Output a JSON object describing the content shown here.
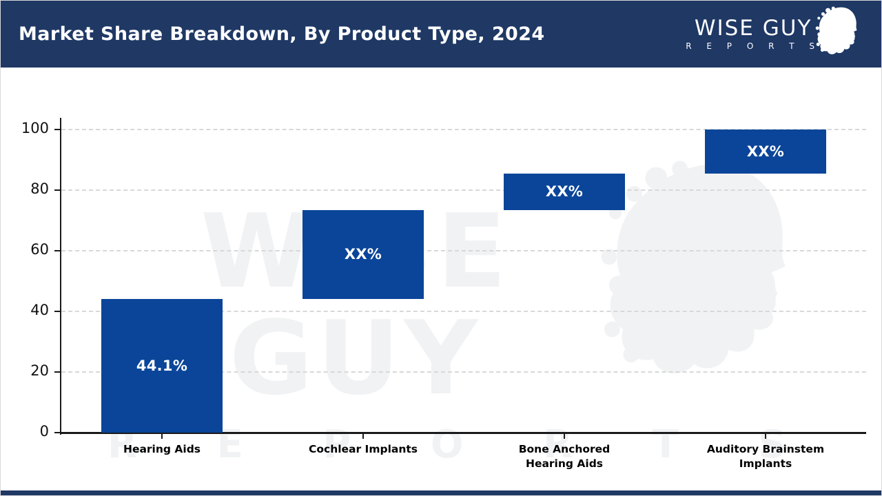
{
  "header": {
    "title": "Market Share Breakdown, By Product Type, 2024",
    "logo": {
      "line1": "WISE GUY",
      "line2": "R E P O R T S"
    }
  },
  "watermark": {
    "line1": "WISE GUY",
    "line2": "R E P O R T S"
  },
  "colors": {
    "header_bg": "#1f3864",
    "title_text": "#ffffff",
    "bar_fill": "#0a4599",
    "bar_label_text": "#ffffff",
    "axis": "#1a1a1a",
    "gridline": "#d8d8d8",
    "tick_label_text": "#111111",
    "watermark": "#f1f2f4"
  },
  "chart_data": {
    "type": "bar",
    "subtype": "floating-waterfall",
    "title": "Market Share Breakdown, By Product Type, 2024",
    "categories": [
      "Hearing Aids",
      "Cochlear Implants",
      "Bone Anchored Hearing Aids",
      "Auditory Brainstem Implants"
    ],
    "segments": [
      {
        "category_lines": [
          "Hearing Aids"
        ],
        "start": 0,
        "end": 44.1,
        "label": "44.1%"
      },
      {
        "category_lines": [
          "Cochlear Implants"
        ],
        "start": 44.1,
        "end": 73.5,
        "label": "XX%"
      },
      {
        "category_lines": [
          "Bone Anchored",
          "Hearing Aids"
        ],
        "start": 73.5,
        "end": 85.5,
        "label": "XX%"
      },
      {
        "category_lines": [
          "Auditory Brainstem",
          "Implants"
        ],
        "start": 85.5,
        "end": 100,
        "label": "XX%"
      }
    ],
    "ylim": [
      0,
      100
    ],
    "yticks": [
      0,
      20,
      40,
      60,
      80,
      100
    ],
    "xlabel": "",
    "ylabel": "",
    "grid": "horizontal-dashed",
    "legend": "none",
    "values_masked_as": "XX%"
  }
}
